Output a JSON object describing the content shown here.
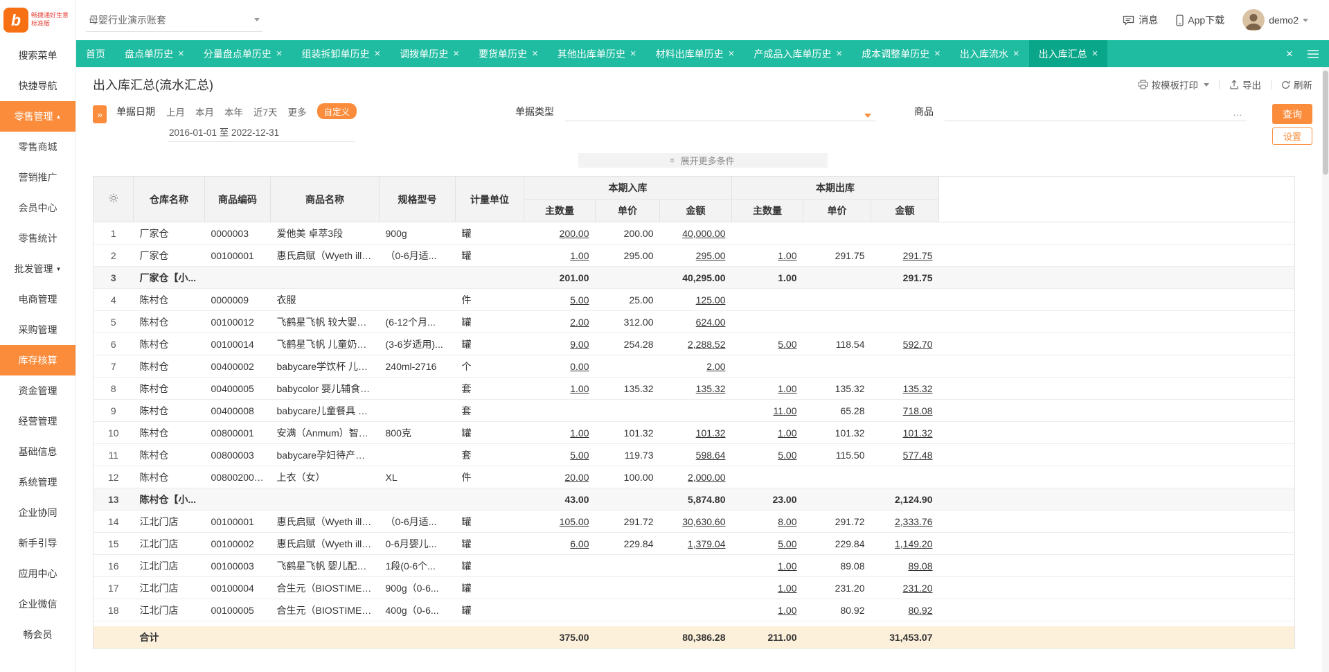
{
  "colors": {
    "teal": "#1fbca1",
    "teal_active_tab": "#0aa689",
    "orange_accent": "#fa8c3c",
    "logo_orange": "#f77013",
    "total_row_bg": "#fcf0da",
    "group_row_bg": "#f7f7f7"
  },
  "logo": {
    "name": "畅捷通好生意",
    "edition": "标准版",
    "glyph": "b"
  },
  "topbar": {
    "account": "母婴行业演示账套",
    "messages": "消息",
    "app_download": "App下载",
    "user": "demo2"
  },
  "tabs": [
    {
      "label": "首页",
      "closable": false,
      "active": false
    },
    {
      "label": "盘点单历史",
      "closable": true,
      "active": false
    },
    {
      "label": "分量盘点单历史",
      "closable": true,
      "active": false
    },
    {
      "label": "组装拆卸单历史",
      "closable": true,
      "active": false
    },
    {
      "label": "调拨单历史",
      "closable": true,
      "active": false
    },
    {
      "label": "要货单历史",
      "closable": true,
      "active": false
    },
    {
      "label": "其他出库单历史",
      "closable": true,
      "active": false
    },
    {
      "label": "材料出库单历史",
      "closable": true,
      "active": false
    },
    {
      "label": "产成品入库单历史",
      "closable": true,
      "active": false
    },
    {
      "label": "成本调整单历史",
      "closable": true,
      "active": false
    },
    {
      "label": "出入库流水",
      "closable": true,
      "active": false
    },
    {
      "label": "出入库汇总",
      "closable": true,
      "active": true
    }
  ],
  "sidebar": [
    {
      "label": "搜索菜单",
      "type": "item"
    },
    {
      "label": "快捷导航",
      "type": "item"
    },
    {
      "label": "零售管理",
      "type": "item",
      "highlight": true,
      "arrow": "up"
    },
    {
      "label": "零售商城",
      "type": "sub"
    },
    {
      "label": "营销推广",
      "type": "sub"
    },
    {
      "label": "会员中心",
      "type": "sub"
    },
    {
      "label": "零售统计",
      "type": "sub"
    },
    {
      "label": "批发管理",
      "type": "item",
      "arrow": "down"
    },
    {
      "label": "电商管理",
      "type": "item"
    },
    {
      "label": "采购管理",
      "type": "item"
    },
    {
      "label": "库存核算",
      "type": "item",
      "highlight": true
    },
    {
      "label": "资金管理",
      "type": "item"
    },
    {
      "label": "经营管理",
      "type": "item"
    },
    {
      "label": "基础信息",
      "type": "item"
    },
    {
      "label": "系统管理",
      "type": "item"
    },
    {
      "label": "企业协同",
      "type": "item"
    },
    {
      "label": "新手引导",
      "type": "item"
    },
    {
      "label": "应用中心",
      "type": "item"
    },
    {
      "label": "企业微信",
      "type": "item"
    },
    {
      "label": "畅会员",
      "type": "item"
    }
  ],
  "page": {
    "title": "出入库汇总(流水汇总)",
    "tools": {
      "print": "按模板打印",
      "export": "导出",
      "refresh": "刷新"
    }
  },
  "filters": {
    "date_label": "单据日期",
    "date_presets": [
      "上月",
      "本月",
      "本年",
      "近7天",
      "更多"
    ],
    "custom_badge": "自定义",
    "date_range": "2016-01-01 至 2022-12-31",
    "doc_type_label": "单据类型",
    "product_label": "商品",
    "product_ellipsis": "…",
    "search": "查询",
    "settings": "设置",
    "expand_more": "展开更多条件",
    "collapse_glyph": "»"
  },
  "table": {
    "group_headers": {
      "inbound": "本期入库",
      "outbound": "本期出库"
    },
    "columns": {
      "warehouse": "仓库名称",
      "code": "商品编码",
      "name": "商品名称",
      "spec": "规格型号",
      "unit": "计量单位",
      "qty": "主数量",
      "price": "单价",
      "amount": "金额"
    },
    "rows": [
      {
        "no": "1",
        "warehouse": "厂家仓",
        "code": "0000003",
        "name": "爱他美 卓萃3段",
        "spec": "900g",
        "unit": "罐",
        "in_qty": "200.00",
        "in_price": "200.00",
        "in_amount": "40,000.00",
        "out_qty": "",
        "out_price": "",
        "out_amount": ""
      },
      {
        "no": "2",
        "warehouse": "厂家仓",
        "code": "00100001",
        "name": "惠氏启赋（Wyeth illu...",
        "spec": "（0-6月适...",
        "unit": "罐",
        "in_qty": "1.00",
        "in_price": "295.00",
        "in_amount": "295.00",
        "out_qty": "1.00",
        "out_price": "291.75",
        "out_amount": "291.75"
      },
      {
        "no": "3",
        "group": true,
        "warehouse": "厂家仓【小...",
        "code": "",
        "name": "",
        "spec": "",
        "unit": "",
        "in_qty": "201.00",
        "in_price": "",
        "in_amount": "40,295.00",
        "out_qty": "1.00",
        "out_price": "",
        "out_amount": "291.75"
      },
      {
        "no": "4",
        "warehouse": "陈村仓",
        "code": "0000009",
        "name": "衣服",
        "spec": "",
        "unit": "件",
        "in_qty": "5.00",
        "in_price": "25.00",
        "in_amount": "125.00",
        "out_qty": "",
        "out_price": "",
        "out_amount": ""
      },
      {
        "no": "5",
        "warehouse": "陈村仓",
        "code": "00100012",
        "name": "飞鹤星飞帆 较大婴儿配...",
        "spec": "(6-12个月...",
        "unit": "罐",
        "in_qty": "2.00",
        "in_price": "312.00",
        "in_amount": "624.00",
        "out_qty": "",
        "out_price": "",
        "out_amount": ""
      },
      {
        "no": "6",
        "warehouse": "陈村仓",
        "code": "00100014",
        "name": "飞鹤星飞帆 儿童奶粉 4...",
        "spec": "(3-6岁适用)...",
        "unit": "罐",
        "in_qty": "9.00",
        "in_price": "254.28",
        "in_amount": "2,288.52",
        "out_qty": "5.00",
        "out_price": "118.54",
        "out_amount": "592.70"
      },
      {
        "no": "7",
        "warehouse": "陈村仓",
        "code": "00400002",
        "name": "babycare学饮杯 儿童...",
        "spec": "240ml-2716",
        "unit": "个",
        "in_qty": "0.00",
        "in_price": "",
        "in_amount": "2.00",
        "out_qty": "",
        "out_price": "",
        "out_amount": ""
      },
      {
        "no": "8",
        "warehouse": "陈村仓",
        "code": "00400005",
        "name": "babycolor 婴儿辅食机...",
        "spec": "",
        "unit": "套",
        "in_qty": "1.00",
        "in_price": "135.32",
        "in_amount": "135.32",
        "out_qty": "1.00",
        "out_price": "135.32",
        "out_amount": "135.32"
      },
      {
        "no": "9",
        "warehouse": "陈村仓",
        "code": "00400008",
        "name": "babycare儿童餐具 婴...",
        "spec": "",
        "unit": "套",
        "in_qty": "",
        "in_price": "",
        "in_amount": "",
        "out_qty": "11.00",
        "out_price": "65.28",
        "out_amount": "718.08"
      },
      {
        "no": "10",
        "warehouse": "陈村仓",
        "code": "00800001",
        "name": "安满（Anmum）智孕...",
        "spec": "800克",
        "unit": "罐",
        "in_qty": "1.00",
        "in_price": "101.32",
        "in_amount": "101.32",
        "out_qty": "1.00",
        "out_price": "101.32",
        "out_amount": "101.32"
      },
      {
        "no": "11",
        "warehouse": "陈村仓",
        "code": "00800003",
        "name": "babycare孕妇待产包...",
        "spec": "",
        "unit": "套",
        "in_qty": "5.00",
        "in_price": "119.73",
        "in_amount": "598.64",
        "out_qty": "5.00",
        "out_price": "115.50",
        "out_amount": "577.48"
      },
      {
        "no": "12",
        "warehouse": "陈村仓",
        "code": "008002000...",
        "name": "上衣（女）",
        "spec": "XL",
        "unit": "件",
        "in_qty": "20.00",
        "in_price": "100.00",
        "in_amount": "2,000.00",
        "out_qty": "",
        "out_price": "",
        "out_amount": ""
      },
      {
        "no": "13",
        "group": true,
        "warehouse": "陈村仓【小...",
        "code": "",
        "name": "",
        "spec": "",
        "unit": "",
        "in_qty": "43.00",
        "in_price": "",
        "in_amount": "5,874.80",
        "out_qty": "23.00",
        "out_price": "",
        "out_amount": "2,124.90"
      },
      {
        "no": "14",
        "warehouse": "江北门店",
        "code": "00100001",
        "name": "惠氏启赋（Wyeth illu...",
        "spec": "（0-6月适...",
        "unit": "罐",
        "in_qty": "105.00",
        "in_price": "291.72",
        "in_amount": "30,630.60",
        "out_qty": "8.00",
        "out_price": "291.72",
        "out_amount": "2,333.76"
      },
      {
        "no": "15",
        "warehouse": "江北门店",
        "code": "00100002",
        "name": "惠氏启赋（Wyeth illu...",
        "spec": "0-6月婴儿...",
        "unit": "罐",
        "in_qty": "6.00",
        "in_price": "229.84",
        "in_amount": "1,379.04",
        "out_qty": "5.00",
        "out_price": "229.84",
        "out_amount": "1,149.20"
      },
      {
        "no": "16",
        "warehouse": "江北门店",
        "code": "00100003",
        "name": "飞鹤星飞帆 婴儿配方奶...",
        "spec": "1段(0-6个...",
        "unit": "罐",
        "in_qty": "",
        "in_price": "",
        "in_amount": "",
        "out_qty": "1.00",
        "out_price": "89.08",
        "out_amount": "89.08"
      },
      {
        "no": "17",
        "warehouse": "江北门店",
        "code": "00100004",
        "name": "合生元（BIOSTIME）...",
        "spec": "900g（0-6...",
        "unit": "罐",
        "in_qty": "",
        "in_price": "",
        "in_amount": "",
        "out_qty": "1.00",
        "out_price": "231.20",
        "out_amount": "231.20"
      },
      {
        "no": "18",
        "warehouse": "江北门店",
        "code": "00100005",
        "name": "合生元（BIOSTIME）...",
        "spec": "400g（0-6...",
        "unit": "罐",
        "in_qty": "",
        "in_price": "",
        "in_amount": "",
        "out_qty": "1.00",
        "out_price": "80.92",
        "out_amount": "80.92"
      }
    ],
    "total": {
      "label": "合计",
      "in_qty": "375.00",
      "in_amount": "80,386.28",
      "out_qty": "211.00",
      "out_amount": "31,453.07"
    }
  }
}
